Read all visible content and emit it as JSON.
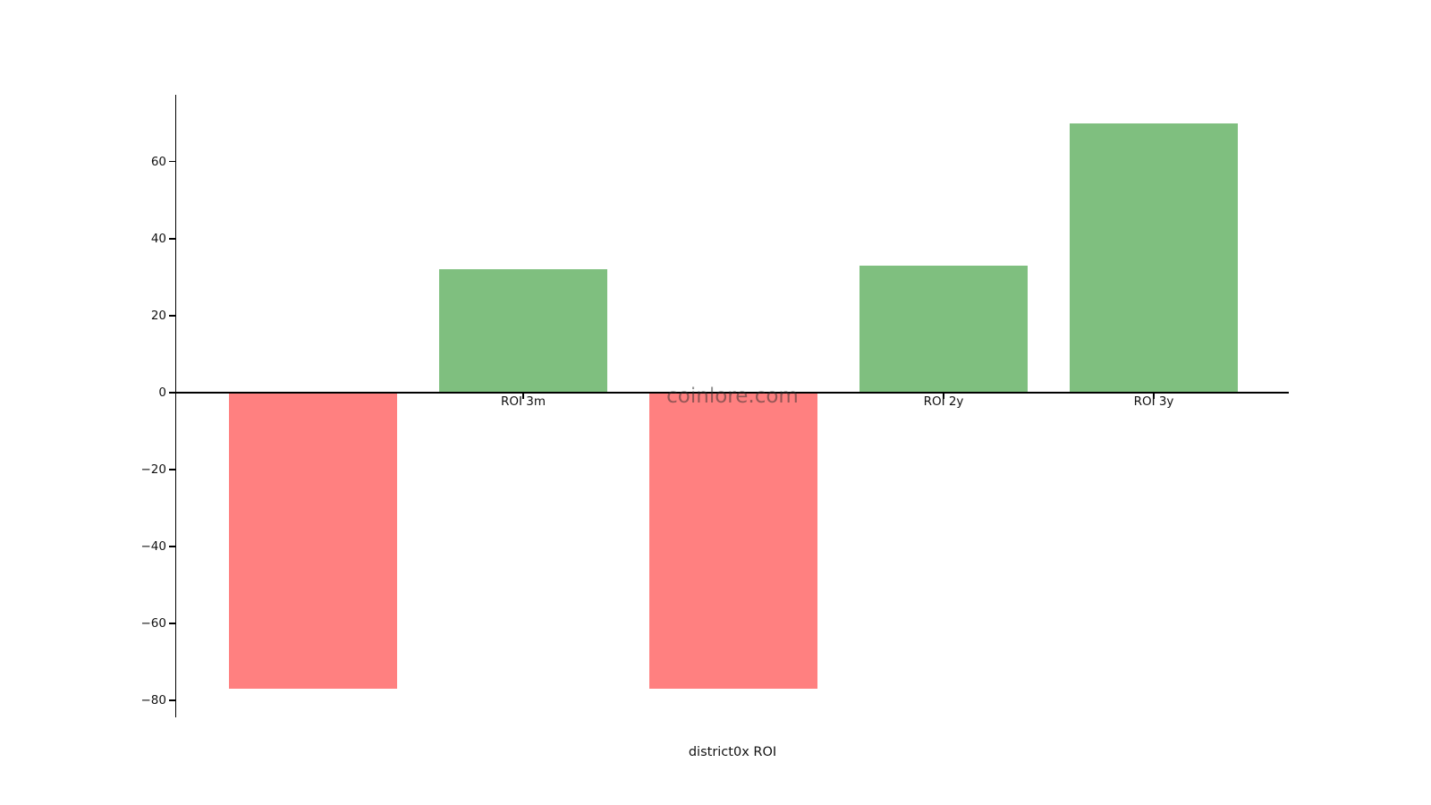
{
  "chart_data": {
    "type": "bar",
    "title": "",
    "xlabel": "district0x ROI",
    "ylabel": "",
    "categories": [
      "",
      "ROI 3m",
      "",
      "ROI 2y",
      "ROI 3y"
    ],
    "values": [
      -77,
      32,
      -77,
      33,
      70
    ],
    "bar_colors": [
      "#ff8080",
      "#7fbf7f",
      "#ff8080",
      "#7fbf7f",
      "#7fbf7f"
    ],
    "ylim": [
      -84.4,
      77.4
    ],
    "ytick_values": [
      60,
      40,
      20,
      0,
      -20,
      -40,
      -60,
      -80
    ],
    "ytick_labels": [
      "60",
      "40",
      "20",
      "0",
      "−20",
      "−40",
      "−60",
      "−80"
    ],
    "grid": false,
    "legend": null,
    "watermark": "coinlore.com",
    "colors": {
      "positive_bar": "#7fbf7f",
      "negative_bar": "#ff8080",
      "axis": "#000000",
      "text": "#111111",
      "watermark": "#2d2d2d"
    }
  }
}
